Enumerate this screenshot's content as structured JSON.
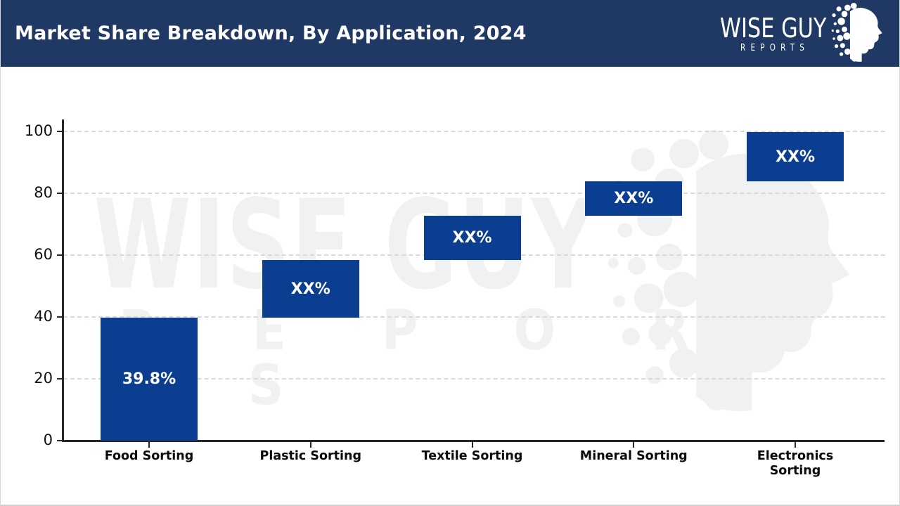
{
  "header": {
    "title": "Market Share Breakdown, By Application, 2024",
    "bg_color": "#203864",
    "brand": {
      "line1": "WISE GUY",
      "line2": "REPORTS"
    }
  },
  "watermark": {
    "line1": "WISE GUY",
    "line2": "R E P O R T S"
  },
  "chart_data": {
    "type": "bar",
    "subtype": "waterfall",
    "title": "Market Share Breakdown, By Application, 2024",
    "categories": [
      "Food Sorting",
      "Plastic Sorting",
      "Textile Sorting",
      "Mineral Sorting",
      "Electronics Sorting"
    ],
    "tick_labels": [
      "Food Sorting",
      "Plastic Sorting",
      "Textile Sorting",
      "Mineral Sorting",
      "Electronics\nSorting"
    ],
    "segments": [
      {
        "category": "Food Sorting",
        "start": 0,
        "end": 39.8,
        "label": "39.8%"
      },
      {
        "category": "Plastic Sorting",
        "start": 39.8,
        "end": 58.3,
        "label": "XX%"
      },
      {
        "category": "Textile Sorting",
        "start": 58.3,
        "end": 72.8,
        "label": "XX%"
      },
      {
        "category": "Mineral Sorting",
        "start": 72.8,
        "end": 83.8,
        "label": "XX%"
      },
      {
        "category": "Electronics Sorting",
        "start": 83.8,
        "end": 99.8,
        "label": "XX%"
      }
    ],
    "y_ticks": [
      0,
      20,
      40,
      60,
      80,
      100
    ],
    "ylim": [
      0,
      104
    ],
    "xlabel": "",
    "ylabel": "",
    "grid": "dashed-horizontal",
    "legend": "none",
    "bar_color": "#0b3e90",
    "bar_label_color": "#ffffff",
    "axis_color": "#262626",
    "grid_color": "#d9d9d9",
    "header_color": "#203864"
  }
}
